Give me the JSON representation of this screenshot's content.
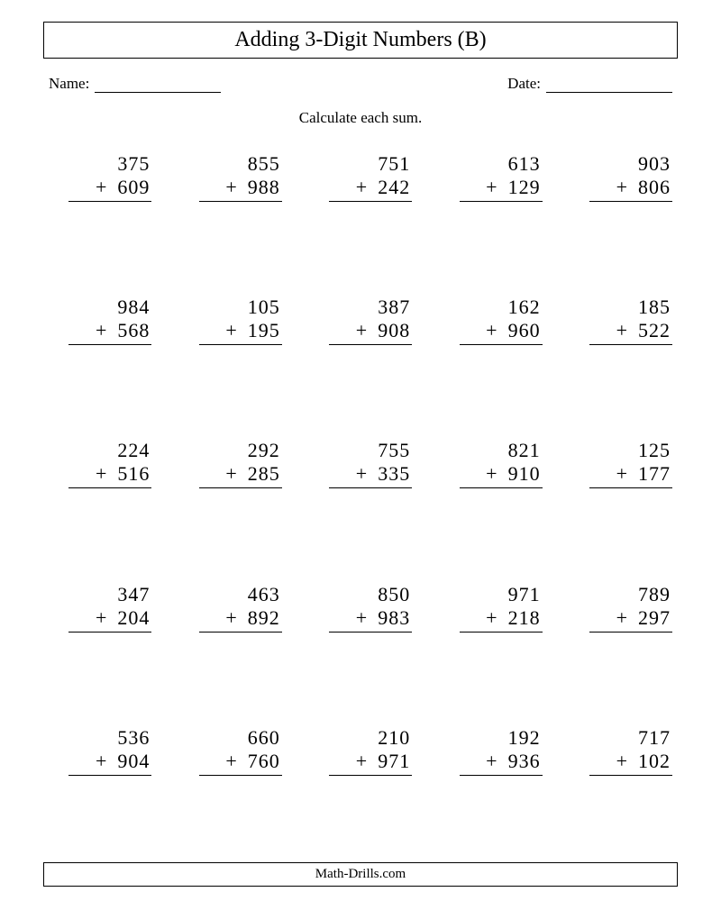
{
  "title": "Adding 3-Digit Numbers (B)",
  "name_label": "Name:",
  "date_label": "Date:",
  "instruction": "Calculate each sum.",
  "operator": "+",
  "footer": "Math-Drills.com",
  "layout": {
    "columns": 5,
    "rows": 5
  },
  "style": {
    "bg": "#ffffff",
    "text": "#000000",
    "title_fontsize": 24,
    "body_fontsize": 17,
    "problem_fontsize": 22,
    "font_family": "Georgia, Times New Roman, serif",
    "border_color": "#000000"
  },
  "problems": [
    {
      "a": "375",
      "b": "609"
    },
    {
      "a": "855",
      "b": "988"
    },
    {
      "a": "751",
      "b": "242"
    },
    {
      "a": "613",
      "b": "129"
    },
    {
      "a": "903",
      "b": "806"
    },
    {
      "a": "984",
      "b": "568"
    },
    {
      "a": "105",
      "b": "195"
    },
    {
      "a": "387",
      "b": "908"
    },
    {
      "a": "162",
      "b": "960"
    },
    {
      "a": "185",
      "b": "522"
    },
    {
      "a": "224",
      "b": "516"
    },
    {
      "a": "292",
      "b": "285"
    },
    {
      "a": "755",
      "b": "335"
    },
    {
      "a": "821",
      "b": "910"
    },
    {
      "a": "125",
      "b": "177"
    },
    {
      "a": "347",
      "b": "204"
    },
    {
      "a": "463",
      "b": "892"
    },
    {
      "a": "850",
      "b": "983"
    },
    {
      "a": "971",
      "b": "218"
    },
    {
      "a": "789",
      "b": "297"
    },
    {
      "a": "536",
      "b": "904"
    },
    {
      "a": "660",
      "b": "760"
    },
    {
      "a": "210",
      "b": "971"
    },
    {
      "a": "192",
      "b": "936"
    },
    {
      "a": "717",
      "b": "102"
    }
  ]
}
